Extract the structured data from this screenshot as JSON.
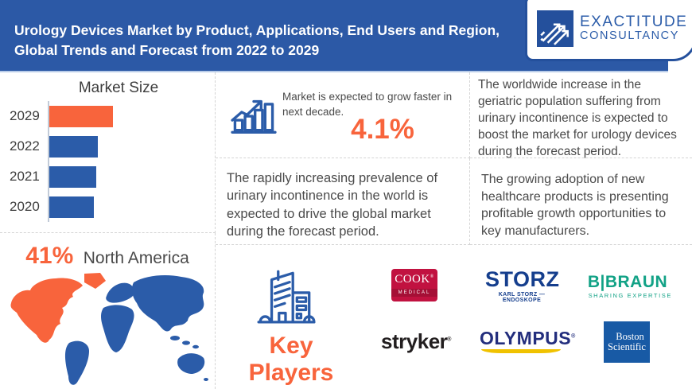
{
  "header": {
    "title": "Urology Devices Market by Product, Applications, End Users and Region, Global Trends and Forecast from 2022 to 2029",
    "logo": {
      "line1": "EXACTITUDE",
      "line2": "CONSULTANCY"
    }
  },
  "colors": {
    "header_blue": "#2c59a6",
    "primary_blue": "#2b5ca9",
    "accent_orange": "#f8643c",
    "text_dark": "#4a4a4a",
    "dashed_border": "#d4d4d4"
  },
  "chart_data": {
    "type": "bar",
    "orientation": "horizontal",
    "title": "Market Size",
    "categories": [
      "2029",
      "2022",
      "2021",
      "2020"
    ],
    "values": [
      100,
      76,
      74,
      70
    ],
    "value_note": "relative bar lengths; no numeric axis labels shown",
    "highlight_category": "2029",
    "bar_colors": [
      "#f8643c",
      "#2b5ca9",
      "#2b5ca9",
      "#2b5ca9"
    ],
    "xlabel": "",
    "ylabel": "",
    "grid": false,
    "legend": false
  },
  "growth": {
    "note": "Market is expected to grow faster in next decade.",
    "rate": "4.1%"
  },
  "insights": {
    "top_right": "The worldwide increase in the geriatric population suffering from urinary incontinence is expected to boost the market for urology devices during the forecast period.",
    "mid_left": "The rapidly increasing prevalence of urinary incontinence in the world is expected to drive the global market during the forecast period.",
    "mid_right": "The growing adoption of new healthcare products is presenting profitable growth opportunities to key manufacturers."
  },
  "region_map": {
    "share": "41%",
    "name": "North America",
    "highlight_color": "#f8643c",
    "base_color": "#2b5ca9"
  },
  "key_players": {
    "label": "Key Players",
    "companies": [
      {
        "name": "COOK",
        "reg": "®",
        "sub": "MEDICAL",
        "brand_color": "#c11240"
      },
      {
        "name": "STORZ",
        "sub": "KARL STORZ — ENDOSKOPE",
        "brand_color": "#153e8d"
      },
      {
        "name": "B|BRAUN",
        "sub": "SHARING EXPERTISE",
        "brand_color": "#12a286"
      },
      {
        "name": "stryker",
        "reg": "®",
        "brand_color": "#221e1f"
      },
      {
        "name": "OLYMPUS",
        "reg": "®",
        "brand_color": "#232e7d"
      },
      {
        "name": "Boston",
        "name2": "Scientific",
        "brand_color": "#185aa5"
      }
    ]
  }
}
